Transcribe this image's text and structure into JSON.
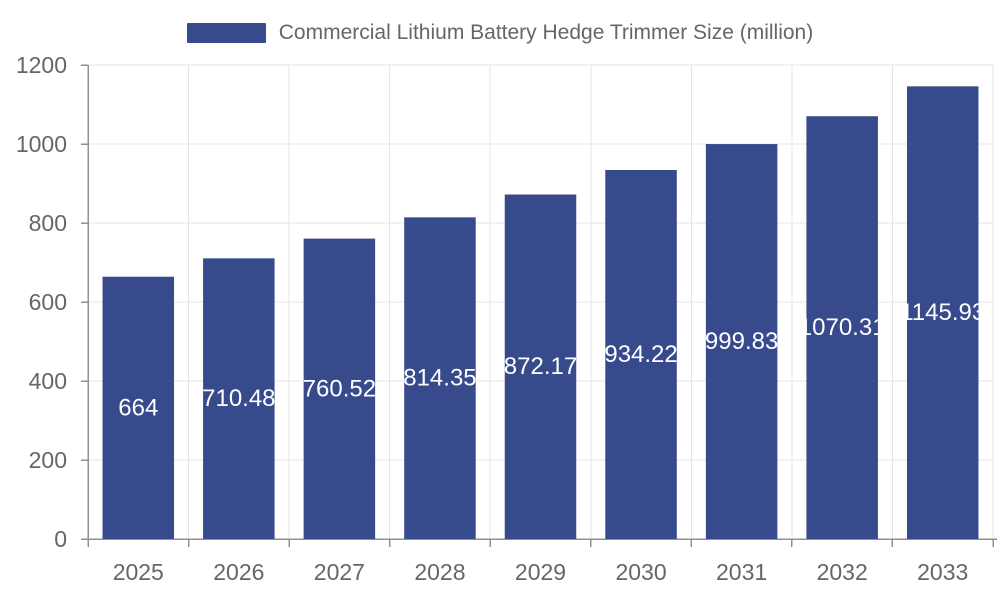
{
  "colors": {
    "bar": "#364A8C",
    "axis_line": "#909090",
    "gridline": "#E3E5EA",
    "tick_label": "#666666",
    "legend_text": "#666666",
    "bar_label": "#FFFFFF",
    "background": "#FFFFFF"
  },
  "chart_data": {
    "type": "bar",
    "title": "",
    "legend": [
      "Commercial Lithium Battery Hedge Trimmer Size (million)"
    ],
    "legend_position": "top",
    "categories": [
      "2025",
      "2026",
      "2027",
      "2028",
      "2029",
      "2030",
      "2031",
      "2032",
      "2033"
    ],
    "series": [
      {
        "name": "Commercial Lithium Battery Hedge Trimmer Size (million)",
        "values": [
          664,
          710.48,
          760.52,
          814.35,
          872.17,
          934.22,
          999.83,
          1070.31,
          1145.93
        ],
        "value_labels": [
          "664",
          "710.48",
          "760.52",
          "814.35",
          "872.17",
          "934.22",
          "999.83",
          "1070.31",
          "1145.93"
        ]
      }
    ],
    "xlabel": "",
    "ylabel": "",
    "ylim": [
      0,
      1200
    ],
    "yticks": [
      0,
      200,
      400,
      600,
      800,
      1000,
      1200
    ],
    "grid": true,
    "grid_vertical": true,
    "bar_labels_inside": true
  }
}
